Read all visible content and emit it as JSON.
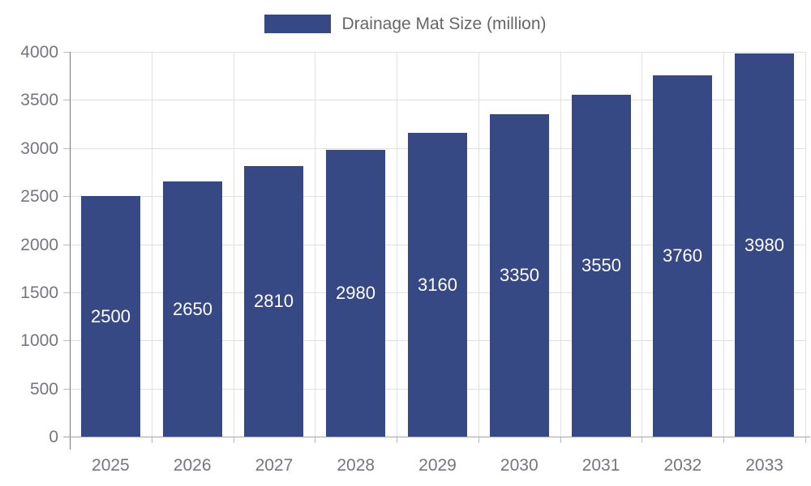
{
  "chart_data": {
    "type": "bar",
    "title": "Drainage Mat Size (million)",
    "legend": [
      "Drainage Mat Size (million)"
    ],
    "legend_position": "top-center",
    "categories": [
      "2025",
      "2026",
      "2027",
      "2028",
      "2029",
      "2030",
      "2031",
      "2032",
      "2033"
    ],
    "series": [
      {
        "name": "Drainage Mat Size (million)",
        "values": [
          2500,
          2650,
          2810,
          2980,
          3160,
          3350,
          3550,
          3760,
          3980
        ]
      }
    ],
    "xlabel": "",
    "ylabel": "",
    "ylim": [
      0,
      4000
    ],
    "yticks": [
      0,
      500,
      1000,
      1500,
      2000,
      2500,
      3000,
      3500,
      4000
    ],
    "grid": true,
    "bar_value_labels": true,
    "colors": {
      "bar": "#364985",
      "grid": "#e0e0e0",
      "axis_y": "#76767e",
      "axis_x": "#a6a6a6",
      "tick": "#bbbbbb",
      "tick_text": "#757581",
      "legend_text": "#666666",
      "bar_label_text": "#ffffff",
      "background": "#ffffff"
    }
  }
}
